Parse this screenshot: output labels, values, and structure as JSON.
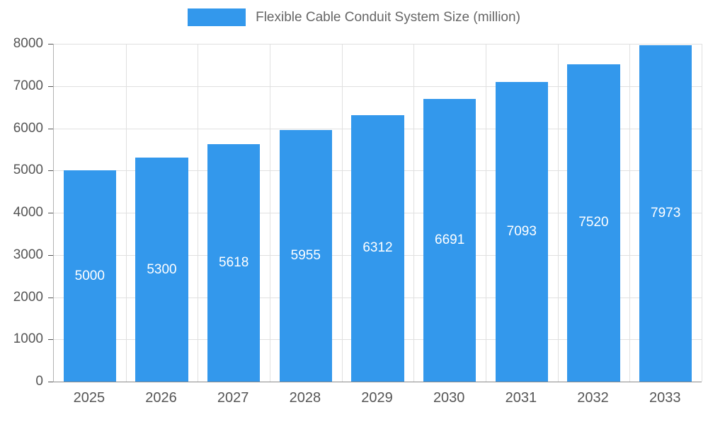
{
  "chart_data": {
    "type": "bar",
    "title": "Flexible Cable Conduit System Size (million)",
    "categories": [
      "2025",
      "2026",
      "2027",
      "2028",
      "2029",
      "2030",
      "2031",
      "2032",
      "2033"
    ],
    "values": [
      5000,
      5300,
      5618,
      5955,
      6312,
      6691,
      7093,
      7520,
      7973
    ],
    "xlabel": "",
    "ylabel": "",
    "ylim": [
      0,
      8000
    ],
    "ytick_step": 1000,
    "grid": true,
    "legend_position": "top",
    "bar_color": "#3398EC",
    "bar_label_color": "#ffffff",
    "axis_text_color": "#555555",
    "legend_text_color": "#666666",
    "gridline_color": "#e0e0e0"
  }
}
